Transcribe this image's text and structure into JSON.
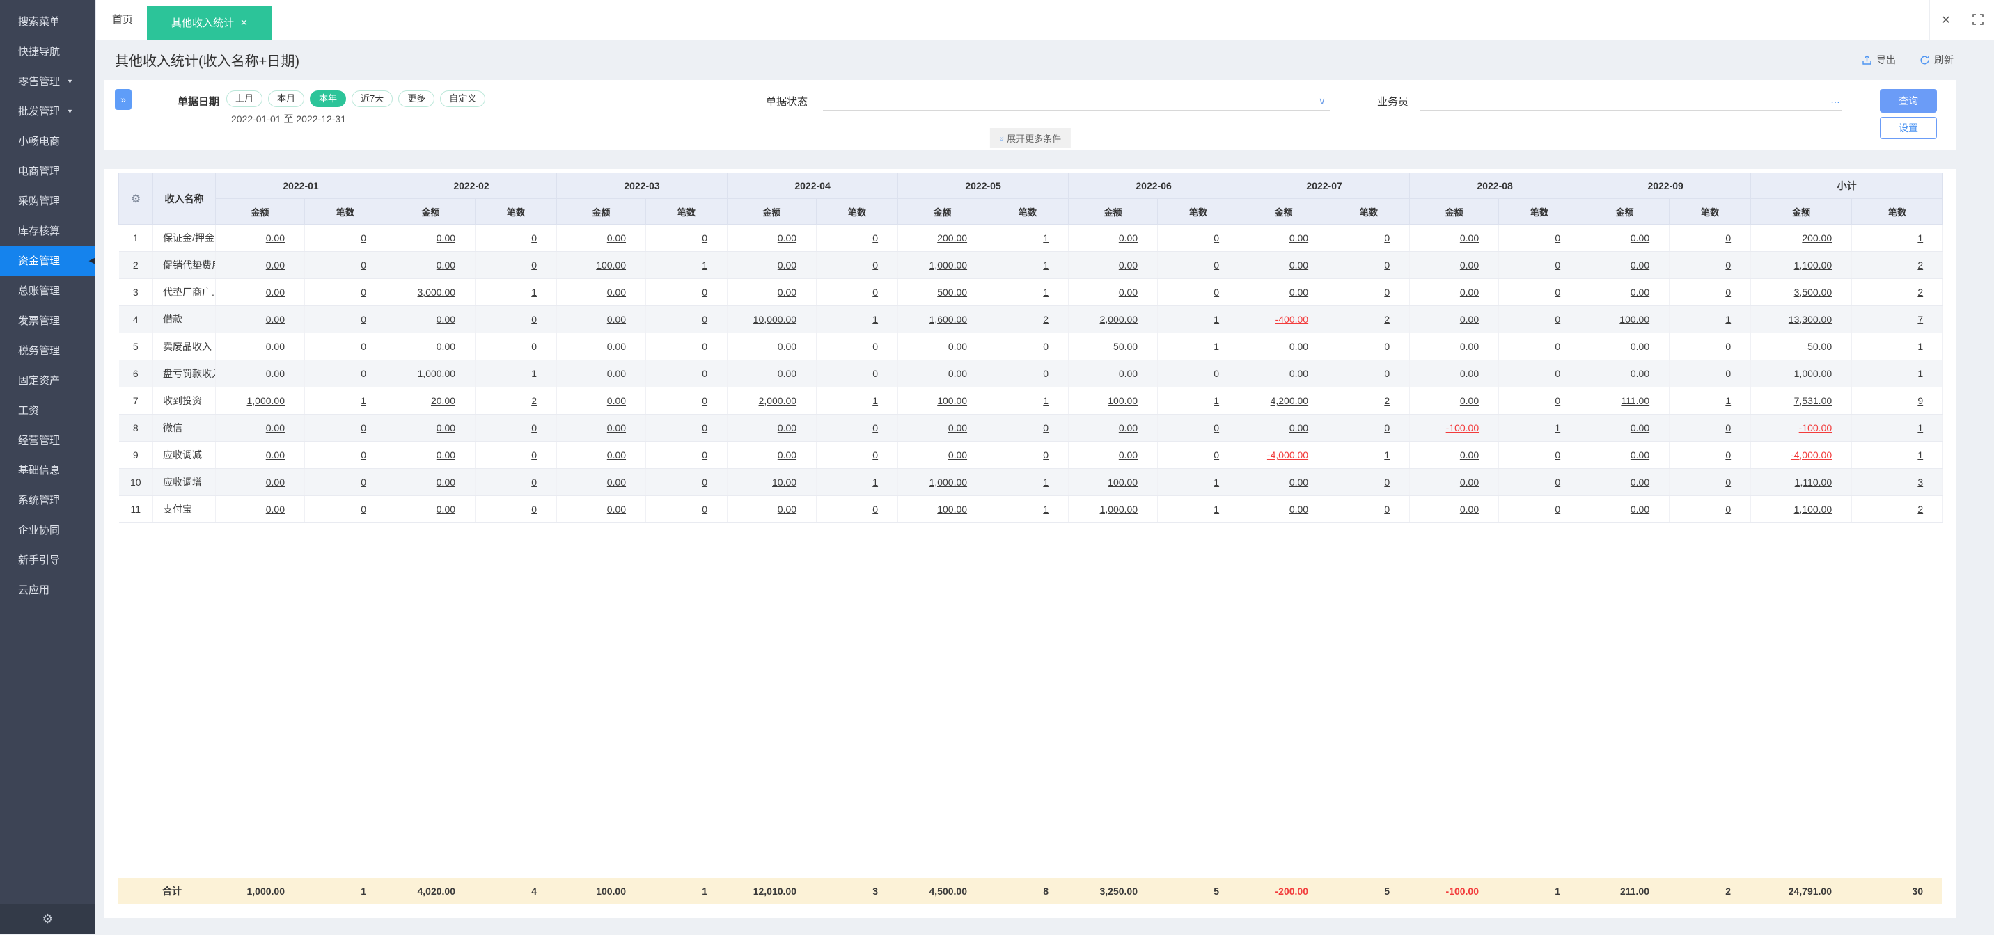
{
  "sidebar": {
    "items": [
      {
        "id": "search-menu",
        "label": "搜索菜单"
      },
      {
        "id": "quick-nav",
        "label": "快捷导航"
      },
      {
        "id": "retail",
        "label": "零售管理",
        "expand_arrow": true
      },
      {
        "id": "wholesale",
        "label": "批发管理",
        "expand_arrow": true
      },
      {
        "id": "xiaochang-ecommerce",
        "label": "小畅电商"
      },
      {
        "id": "ecommerce",
        "label": "电商管理"
      },
      {
        "id": "purchase",
        "label": "采购管理"
      },
      {
        "id": "inventory-accounting",
        "label": "库存核算"
      },
      {
        "id": "funds",
        "label": "资金管理",
        "active": true
      },
      {
        "id": "general-ledger",
        "label": "总账管理"
      },
      {
        "id": "invoice",
        "label": "发票管理"
      },
      {
        "id": "tax",
        "label": "税务管理"
      },
      {
        "id": "fixed-assets",
        "label": "固定资产"
      },
      {
        "id": "payroll",
        "label": "工资"
      },
      {
        "id": "operations",
        "label": "经营管理"
      },
      {
        "id": "base-info",
        "label": "基础信息"
      },
      {
        "id": "system",
        "label": "系统管理"
      },
      {
        "id": "enterprise-collab",
        "label": "企业协同"
      },
      {
        "id": "newbie-guide",
        "label": "新手引导"
      },
      {
        "id": "cloud-apps",
        "label": "云应用"
      }
    ]
  },
  "tabs": {
    "home": "首页",
    "active": "其他收入统计"
  },
  "page": {
    "title": "其他收入统计(收入名称+日期)",
    "export_label": "导出",
    "refresh_label": "刷新"
  },
  "filters": {
    "date_label": "单据日期",
    "date_presets": [
      {
        "label": "上月"
      },
      {
        "label": "本月"
      },
      {
        "label": "本年",
        "active": true
      },
      {
        "label": "近7天"
      },
      {
        "label": "更多"
      },
      {
        "label": "自定义"
      }
    ],
    "date_range": "2022-01-01 至 2022-12-31",
    "status_label": "单据状态",
    "status_value": "",
    "salesperson_label": "业务员",
    "salesperson_value": "",
    "more_button": "展开更多条件",
    "query_button": "查询",
    "settings_button": "设置"
  },
  "table": {
    "name_header": "收入名称",
    "amount_header": "金额",
    "count_header": "笔数",
    "month_groups": [
      "2022-01",
      "2022-02",
      "2022-03",
      "2022-04",
      "2022-05",
      "2022-06",
      "2022-07",
      "2022-08",
      "2022-09",
      "小计"
    ],
    "rows": [
      {
        "index": "1",
        "name": "保证金/押金",
        "values": [
          "0.00",
          "0",
          "0.00",
          "0",
          "0.00",
          "0",
          "0.00",
          "0",
          "200.00",
          "1",
          "0.00",
          "0",
          "0.00",
          "0",
          "0.00",
          "0",
          "0.00",
          "0",
          "200.00",
          "1"
        ]
      },
      {
        "index": "2",
        "name": "促销代垫费用",
        "values": [
          "0.00",
          "0",
          "0.00",
          "0",
          "100.00",
          "1",
          "0.00",
          "0",
          "1,000.00",
          "1",
          "0.00",
          "0",
          "0.00",
          "0",
          "0.00",
          "0",
          "0.00",
          "0",
          "1,100.00",
          "2"
        ]
      },
      {
        "index": "3",
        "name": "代垫厂商广...",
        "values": [
          "0.00",
          "0",
          "3,000.00",
          "1",
          "0.00",
          "0",
          "0.00",
          "0",
          "500.00",
          "1",
          "0.00",
          "0",
          "0.00",
          "0",
          "0.00",
          "0",
          "0.00",
          "0",
          "3,500.00",
          "2"
        ]
      },
      {
        "index": "4",
        "name": "借款",
        "values": [
          "0.00",
          "0",
          "0.00",
          "0",
          "0.00",
          "0",
          "10,000.00",
          "1",
          "1,600.00",
          "2",
          "2,000.00",
          "1",
          "-400.00",
          "2",
          "0.00",
          "0",
          "100.00",
          "1",
          "13,300.00",
          "7"
        ]
      },
      {
        "index": "5",
        "name": "卖废品收入",
        "values": [
          "0.00",
          "0",
          "0.00",
          "0",
          "0.00",
          "0",
          "0.00",
          "0",
          "0.00",
          "0",
          "50.00",
          "1",
          "0.00",
          "0",
          "0.00",
          "0",
          "0.00",
          "0",
          "50.00",
          "1"
        ]
      },
      {
        "index": "6",
        "name": "盘亏罚款收入",
        "values": [
          "0.00",
          "0",
          "1,000.00",
          "1",
          "0.00",
          "0",
          "0.00",
          "0",
          "0.00",
          "0",
          "0.00",
          "0",
          "0.00",
          "0",
          "0.00",
          "0",
          "0.00",
          "0",
          "1,000.00",
          "1"
        ]
      },
      {
        "index": "7",
        "name": "收到投资",
        "values": [
          "1,000.00",
          "1",
          "20.00",
          "2",
          "0.00",
          "0",
          "2,000.00",
          "1",
          "100.00",
          "1",
          "100.00",
          "1",
          "4,200.00",
          "2",
          "0.00",
          "0",
          "111.00",
          "1",
          "7,531.00",
          "9"
        ]
      },
      {
        "index": "8",
        "name": "微信",
        "values": [
          "0.00",
          "0",
          "0.00",
          "0",
          "0.00",
          "0",
          "0.00",
          "0",
          "0.00",
          "0",
          "0.00",
          "0",
          "0.00",
          "0",
          "-100.00",
          "1",
          "0.00",
          "0",
          "-100.00",
          "1"
        ]
      },
      {
        "index": "9",
        "name": "应收调减",
        "values": [
          "0.00",
          "0",
          "0.00",
          "0",
          "0.00",
          "0",
          "0.00",
          "0",
          "0.00",
          "0",
          "0.00",
          "0",
          "-4,000.00",
          "1",
          "0.00",
          "0",
          "0.00",
          "0",
          "-4,000.00",
          "1"
        ]
      },
      {
        "index": "10",
        "name": "应收调增",
        "values": [
          "0.00",
          "0",
          "0.00",
          "0",
          "0.00",
          "0",
          "10.00",
          "1",
          "1,000.00",
          "1",
          "100.00",
          "1",
          "0.00",
          "0",
          "0.00",
          "0",
          "0.00",
          "0",
          "1,110.00",
          "3"
        ]
      },
      {
        "index": "11",
        "name": "支付宝",
        "values": [
          "0.00",
          "0",
          "0.00",
          "0",
          "0.00",
          "0",
          "0.00",
          "0",
          "100.00",
          "1",
          "1,000.00",
          "1",
          "0.00",
          "0",
          "0.00",
          "0",
          "0.00",
          "0",
          "1,100.00",
          "2"
        ]
      }
    ],
    "total": {
      "label": "合计",
      "values": [
        "1,000.00",
        "1",
        "4,020.00",
        "4",
        "100.00",
        "1",
        "12,010.00",
        "3",
        "4,500.00",
        "8",
        "3,250.00",
        "5",
        "-200.00",
        "5",
        "-100.00",
        "1",
        "211.00",
        "2",
        "24,791.00",
        "30"
      ]
    }
  },
  "colors": {
    "sidebar_bg": "#3d4455",
    "sidebar_active_blue": "#1583ed",
    "tab_green": "#2cc499",
    "accent_blue": "#4d94f2",
    "query_button_blue": "#6b9cf7",
    "negative_red": "#f23c3c",
    "total_row_bg": "#fcf2d7",
    "header_bg": "#e9edf7"
  }
}
